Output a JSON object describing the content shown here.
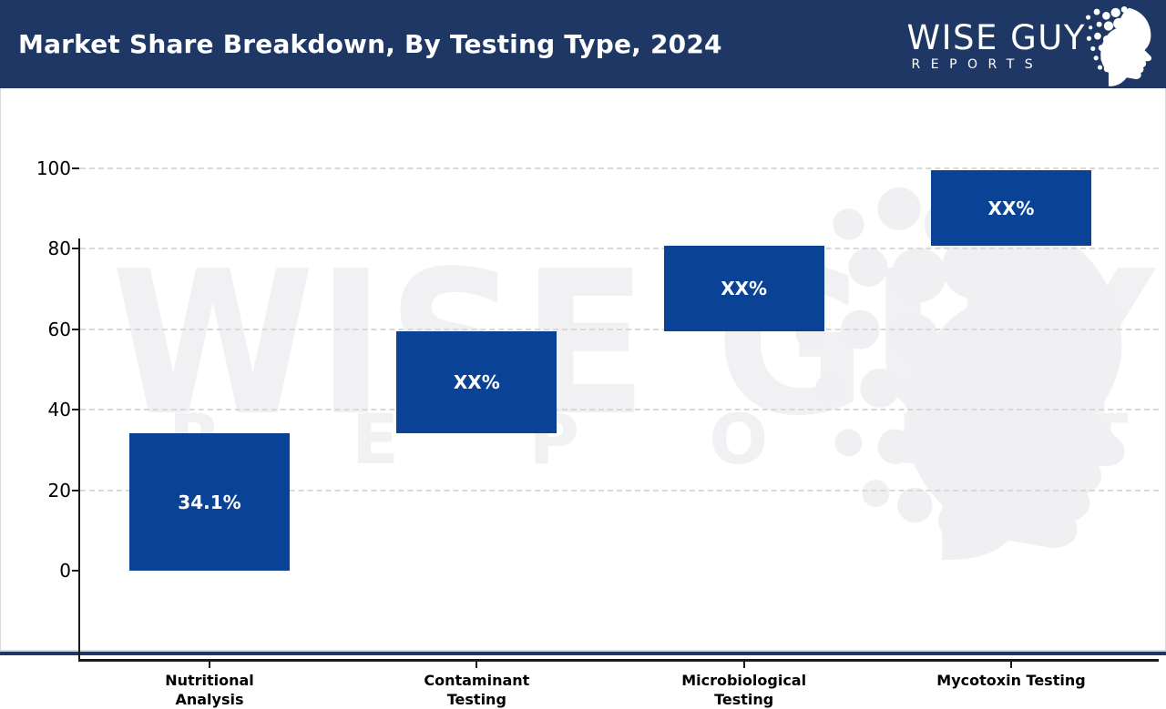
{
  "header": {
    "title": "Market Share Breakdown, By Testing Type, 2024",
    "bg_color": "#1e3765",
    "logo": {
      "line1": "WISE GUY",
      "line2": "REPORTS",
      "face_icon": "dotted-head-profile"
    }
  },
  "watermark": {
    "line1": "WISE GUY",
    "line2": "R E P O R T S",
    "color": "#f1f1f3"
  },
  "chart_data": {
    "type": "bar",
    "subtype": "waterfall",
    "title": "Market Share Breakdown, By Testing Type, 2024",
    "categories": [
      "Nutritional\nAnalysis",
      "Contaminant\nTesting",
      "Microbiological\nTesting",
      "Mycotoxin Testing"
    ],
    "segments": [
      {
        "category": "Nutritional Analysis",
        "start": 0,
        "end": 34.1,
        "label": "34.1%"
      },
      {
        "category": "Contaminant Testing",
        "start": 34.1,
        "end": 59.5,
        "label": "XX%"
      },
      {
        "category": "Microbiological Testing",
        "start": 59.5,
        "end": 80.7,
        "label": "XX%"
      },
      {
        "category": "Mycotoxin Testing",
        "start": 80.7,
        "end": 99.5,
        "label": "XX%"
      }
    ],
    "values": [
      34.1,
      25.4,
      21.2,
      18.8
    ],
    "y_ticks": [
      0,
      20,
      40,
      60,
      80,
      100
    ],
    "ylim": [
      0,
      105
    ],
    "xlabel": "",
    "ylabel": "",
    "grid": true,
    "grid_style": "dashed",
    "bar_color": "#0a4296",
    "bar_label_color": "#ffffff",
    "legend": "none"
  }
}
